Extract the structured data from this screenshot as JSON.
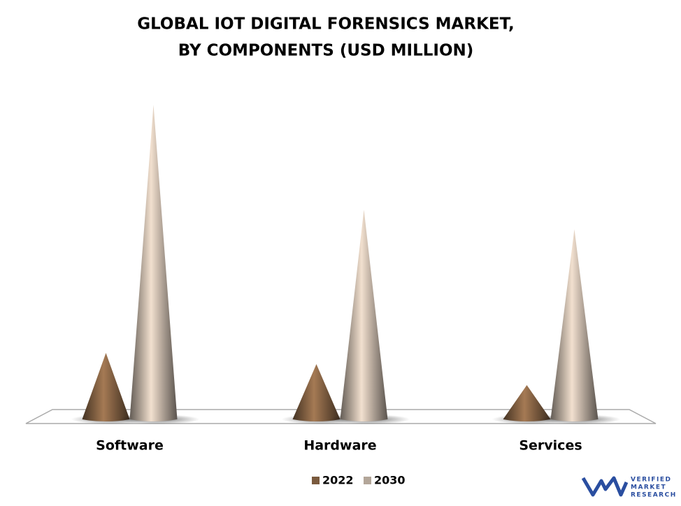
{
  "chart_data": {
    "type": "cone",
    "title": [
      "GLOBAL IOT DIGITAL FORENSICS MARKET,",
      "BY COMPONENTS  (USD MILLION)"
    ],
    "categories": [
      "Software",
      "Hardware",
      "Services"
    ],
    "series": [
      {
        "name": "2022",
        "color": "#7a5a3e",
        "values": [
          95,
          79,
          49
        ]
      },
      {
        "name": "2030",
        "color": "#b3a699",
        "values": [
          450,
          300,
          272
        ]
      }
    ]
  },
  "logo": {
    "lines": [
      "VERIFIED",
      "MARKET",
      "RESEARCH"
    ]
  }
}
